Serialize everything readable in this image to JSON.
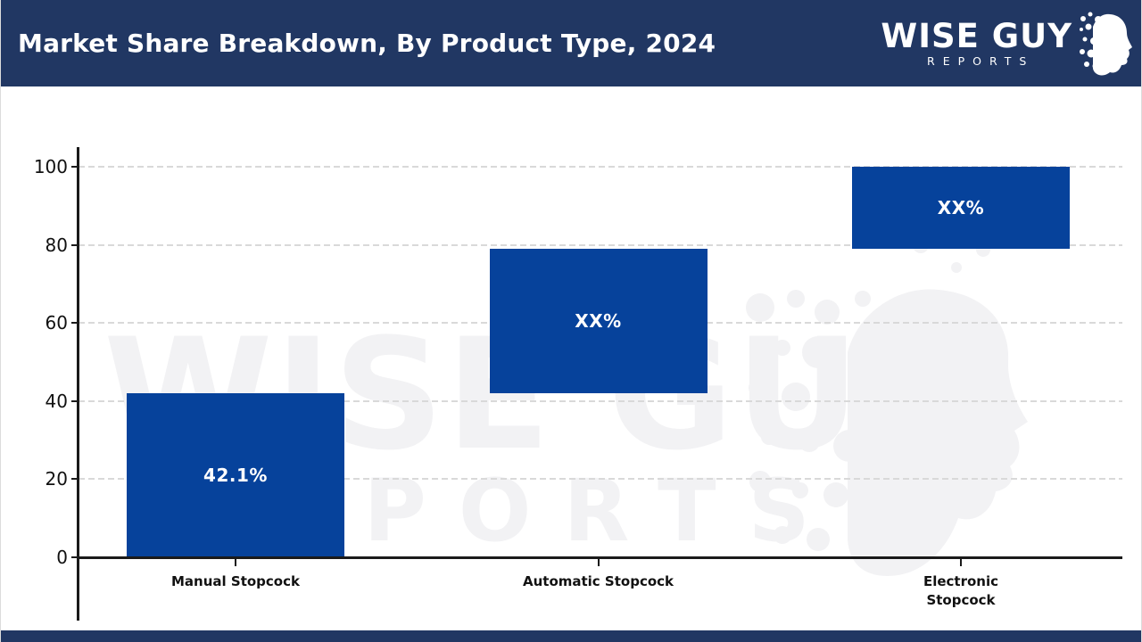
{
  "header": {
    "title": "Market Share Breakdown, By Product Type, 2024",
    "logo": {
      "brand_line1": "WISE GUY",
      "brand_line2": "REPORTS"
    }
  },
  "watermark": {
    "line1": "WISE GUY",
    "line2": "REPORTS"
  },
  "chart_data": {
    "type": "bar",
    "subtype": "stacked-waterfall",
    "title": "Market Share Breakdown, By Product Type, 2024",
    "categories": [
      "Manual Stopcock",
      "Automatic Stopcock",
      "Electronic Stopcock"
    ],
    "segments": [
      {
        "category": "Manual Stopcock",
        "start": 0,
        "end": 42.1,
        "label": "42.1%"
      },
      {
        "category": "Automatic Stopcock",
        "start": 42.1,
        "end": 79.0,
        "label": "XX%"
      },
      {
        "category": "Electronic Stopcock",
        "start": 79.0,
        "end": 100.0,
        "label": "XX%"
      }
    ],
    "xlabel": "",
    "ylabel": "",
    "ylim": [
      0,
      100
    ],
    "yticks": [
      0,
      20,
      40,
      60,
      80,
      100
    ],
    "grid": "horizontal-dashed",
    "legend": "none"
  },
  "colors": {
    "header_bg": "#213763",
    "footer_bg": "#213763",
    "bar": "#06429b",
    "bar_label": "#ffffff",
    "gridline": "#d9d9d9",
    "axis": "#1a1a1a",
    "tick_text": "#111111",
    "title_text": "#ffffff",
    "watermark": "#f2f2f4"
  }
}
